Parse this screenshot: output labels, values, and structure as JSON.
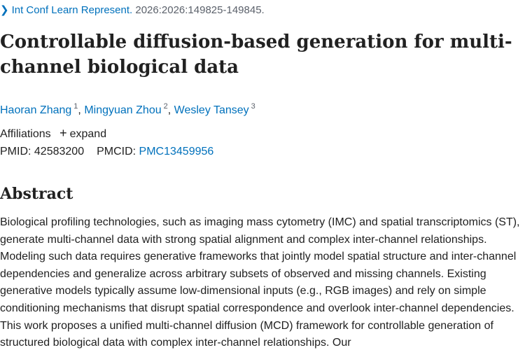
{
  "journal": {
    "name": "Int Conf Learn Represent.",
    "citation": "2026:2026:149825-149845.",
    "chevron_icon": "chevron-right-icon"
  },
  "title": "Controllable diffusion-based generation for multi-channel biological data",
  "authors": [
    {
      "name": "Haoran Zhang",
      "sup": "1"
    },
    {
      "name": "Mingyuan Zhou",
      "sup": "2"
    },
    {
      "name": "Wesley Tansey",
      "sup": "3"
    }
  ],
  "author_separator": ",",
  "affiliations": {
    "label": "Affiliations",
    "expand_label": "expand",
    "expand_icon": "plus-icon"
  },
  "ids": {
    "pmid_label": "PMID:",
    "pmid": "42583200",
    "pmcid_label": "PMCID:",
    "pmcid": "PMC13459956"
  },
  "abstract": {
    "heading": "Abstract",
    "text": "Biological profiling technologies, such as imaging mass cytometry (IMC) and spatial transcriptomics (ST), generate multi-channel data with strong spatial alignment and complex inter-channel relationships. Modeling such data requires generative frameworks that jointly model spatial structure and inter-channel dependencies and generalize across arbitrary subsets of observed and missing channels. Existing generative models typically assume low-dimensional inputs (e.g., RGB images) and rely on simple conditioning mechanisms that disrupt spatial correspondence and overlook inter-channel dependencies. This work proposes a unified multi-channel diffusion (MCD) framework for controllable generation of structured biological data with complex inter-channel relationships. Our"
  },
  "colors": {
    "link": "#0071bc",
    "text": "#212121",
    "muted": "#5b616b"
  }
}
